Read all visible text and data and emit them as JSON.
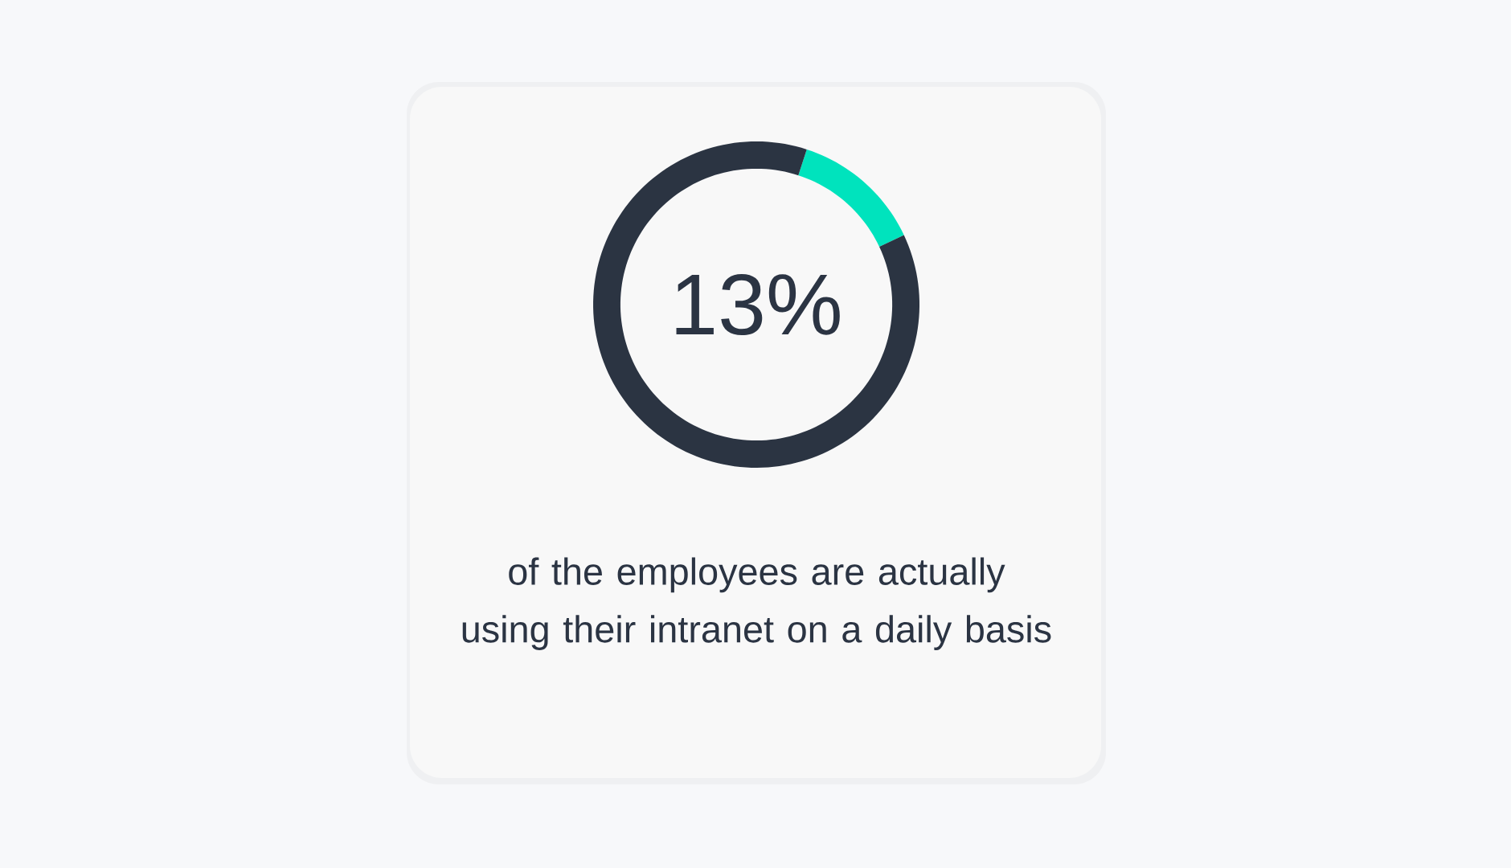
{
  "chart_data": {
    "type": "donut",
    "categories": [
      null,
      null
    ],
    "values": [
      13,
      87
    ],
    "colors": [
      "#00e3bd",
      "#2b3442"
    ],
    "annotations": [
      "13%",
      "of the employees are actually using their intranet on a daily basis"
    ]
  }
}
